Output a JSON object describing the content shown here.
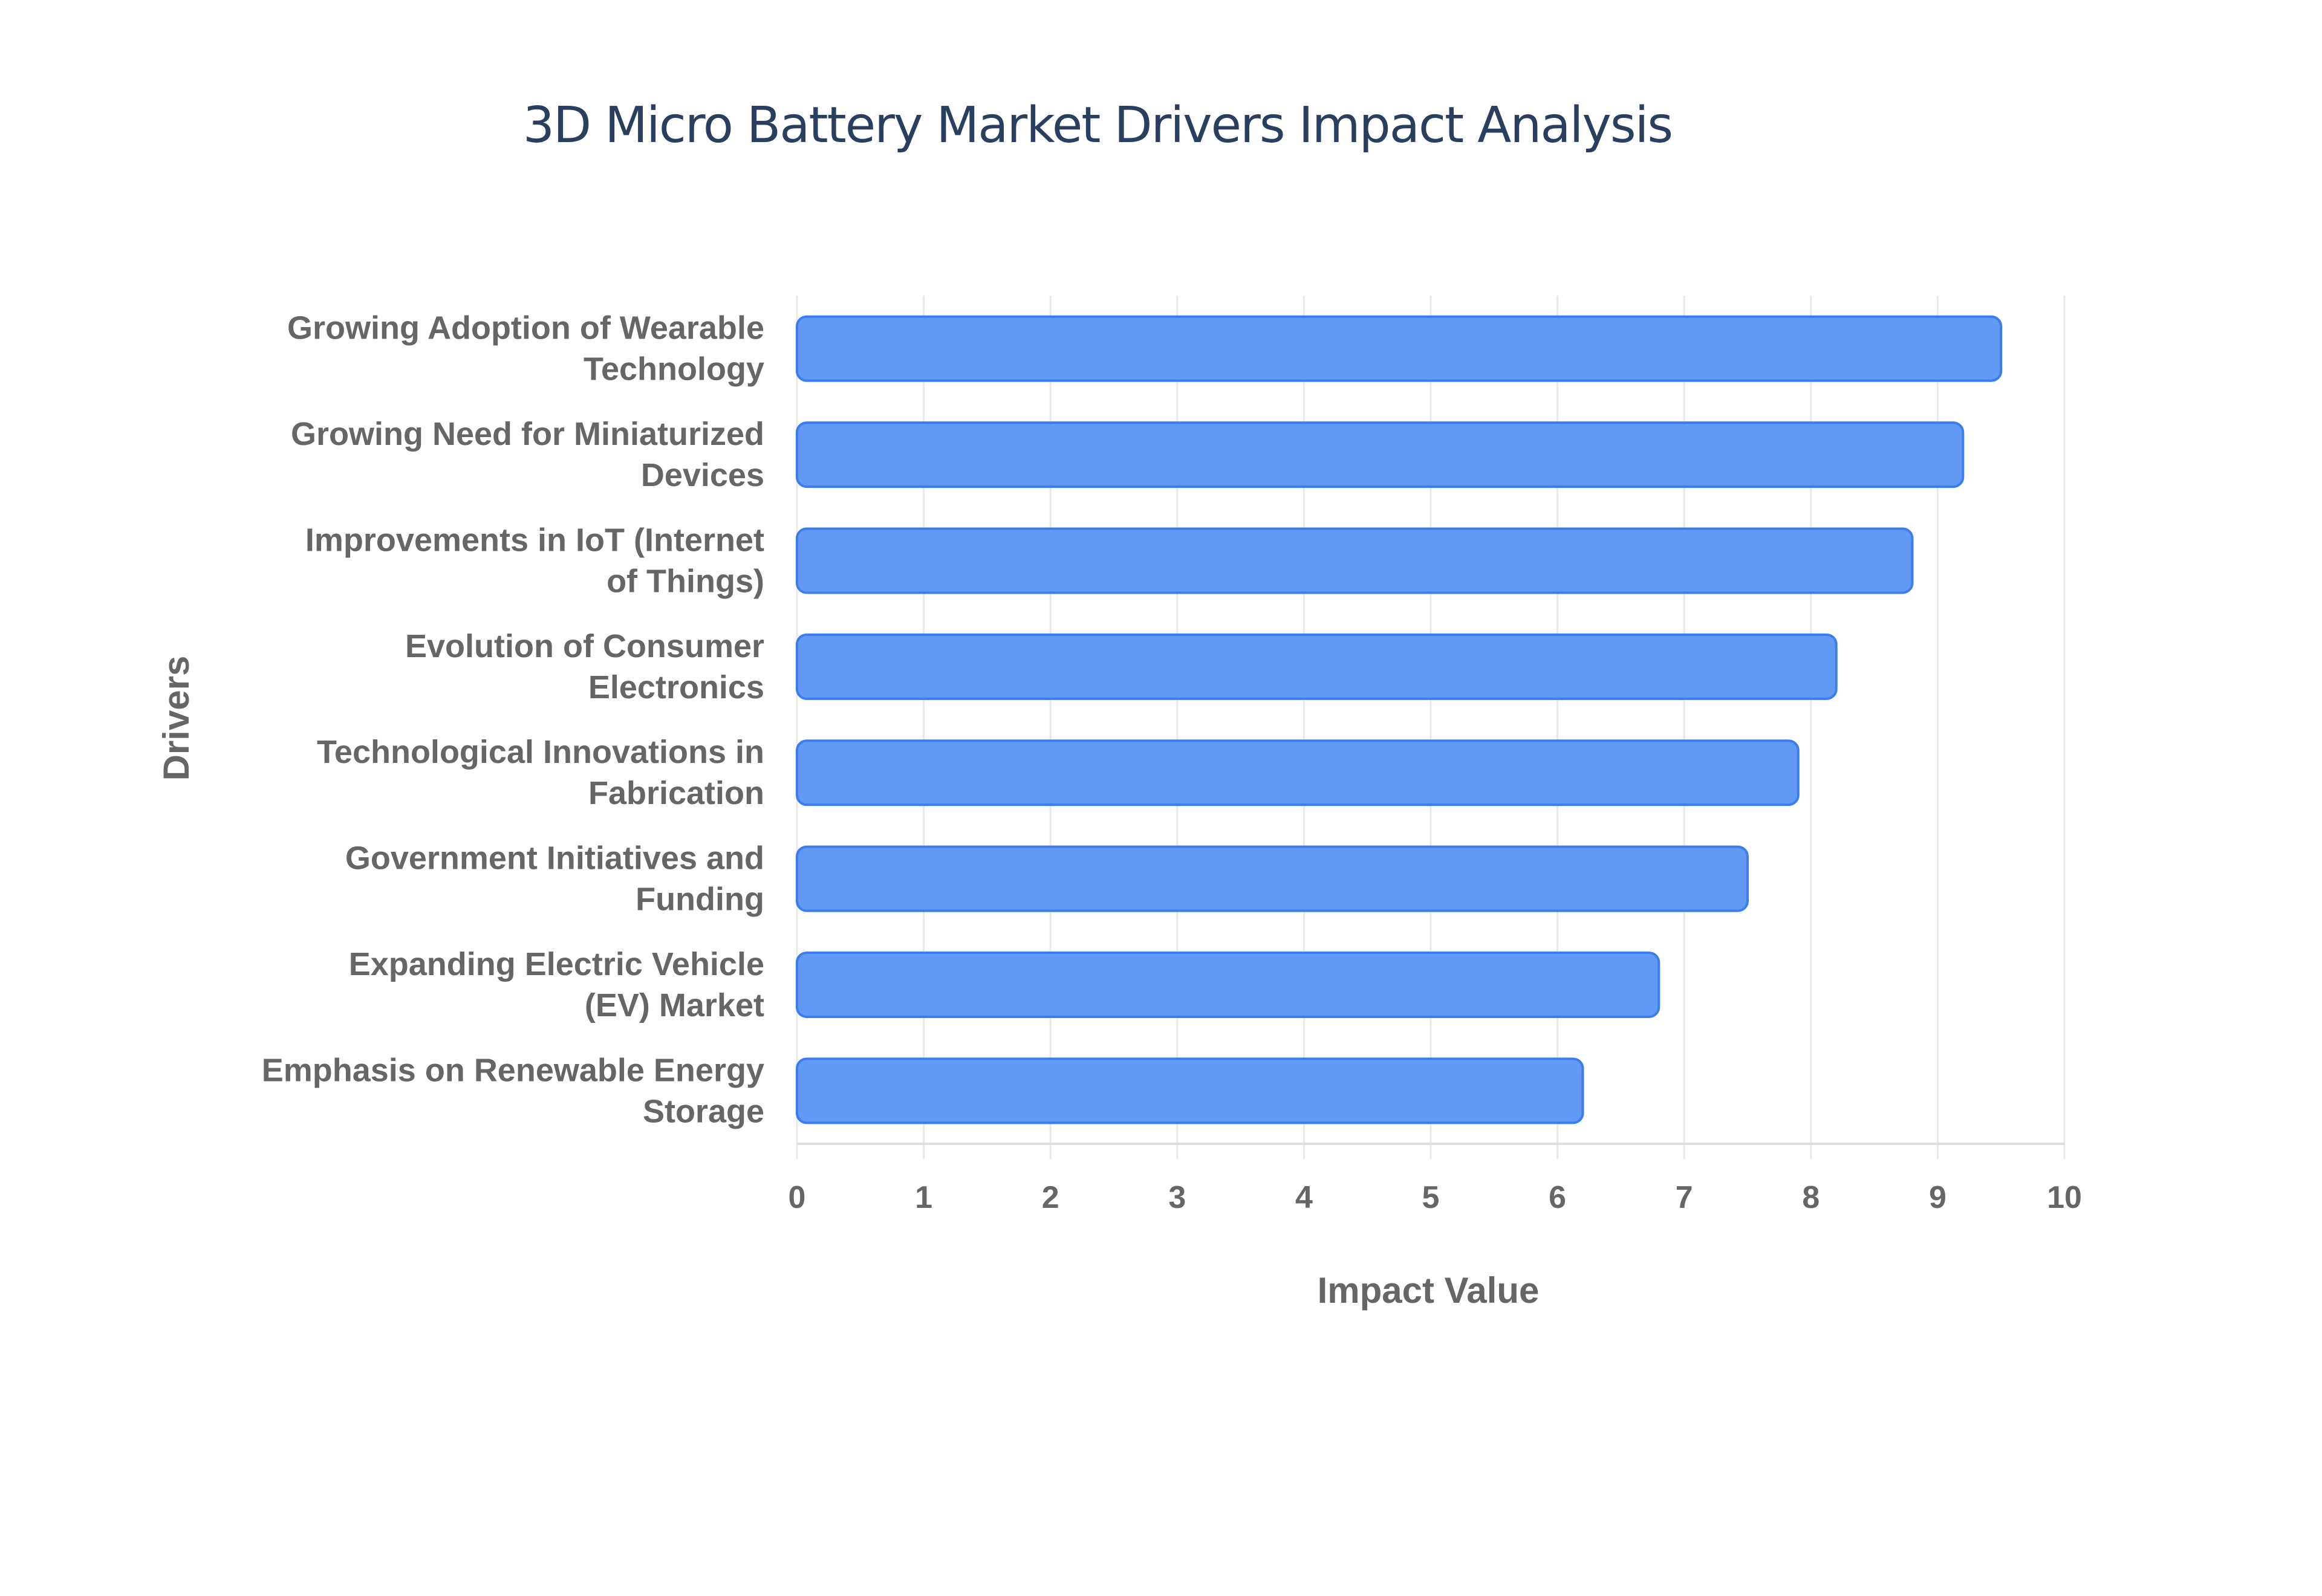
{
  "chart_data": {
    "type": "bar",
    "orientation": "horizontal",
    "title": "3D Micro Battery Market Drivers Impact Analysis",
    "xlabel": "Impact Value",
    "ylabel": "Drivers",
    "xlim": [
      0,
      10
    ],
    "xticks": [
      "0",
      "1",
      "2",
      "3",
      "4",
      "5",
      "6",
      "7",
      "8",
      "9",
      "10"
    ],
    "grid": true,
    "categories": [
      [
        "Growing Adoption of Wearable",
        "Technology"
      ],
      [
        "Growing Need for Miniaturized",
        "Devices"
      ],
      [
        "Improvements in IoT (Internet",
        "of Things)"
      ],
      [
        "Evolution of Consumer",
        "Electronics"
      ],
      [
        "Technological Innovations in",
        "Fabrication"
      ],
      [
        "Government Initiatives and",
        "Funding"
      ],
      [
        "Expanding Electric Vehicle",
        "(EV) Market"
      ],
      [
        "Emphasis on Renewable Energy",
        "Storage"
      ]
    ],
    "values": [
      9.5,
      9.2,
      8.8,
      8.2,
      7.9,
      7.5,
      6.8,
      6.2
    ],
    "colors": {
      "bar_fill": "#6199f5",
      "bar_stroke": "#3b7ded",
      "grid": "#e8e8e8",
      "text": "#666666",
      "title": "#2a3f5f"
    }
  }
}
